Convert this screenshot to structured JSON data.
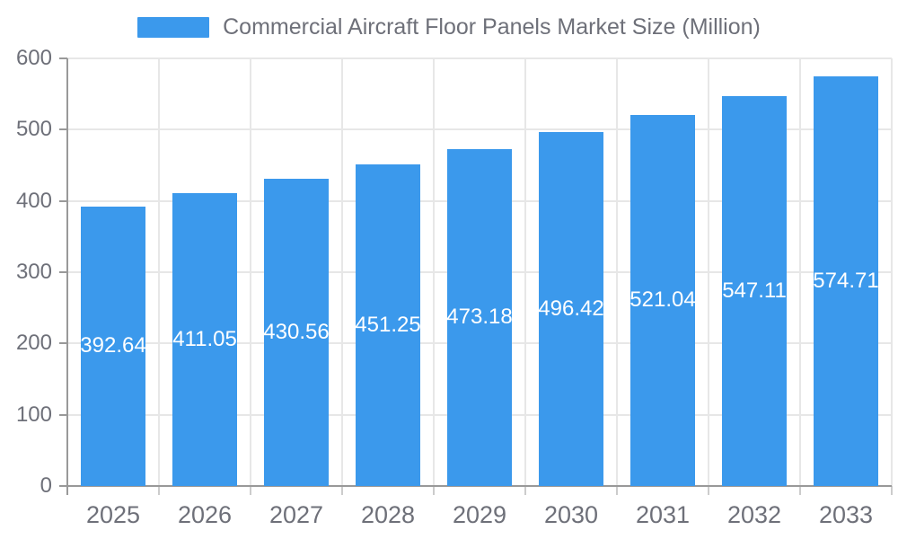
{
  "legend": {
    "label": "Commercial Aircraft Floor Panels Market Size (Million)",
    "swatch_color": "#3B99EC"
  },
  "chart_data": {
    "type": "bar",
    "title": "Commercial Aircraft Floor Panels Market Size (Million)",
    "categories": [
      "2025",
      "2026",
      "2027",
      "2028",
      "2029",
      "2030",
      "2031",
      "2032",
      "2033"
    ],
    "values": [
      392.64,
      411.05,
      430.56,
      451.25,
      473.18,
      496.42,
      521.04,
      547.11,
      574.71
    ],
    "value_labels": [
      "392.64",
      "411.05",
      "430.56",
      "451.25",
      "473.18",
      "496.42",
      "521.04",
      "547.11",
      "574.71"
    ],
    "xlabel": "",
    "ylabel": "",
    "ylim": [
      0,
      600
    ],
    "yticks": [
      0,
      100,
      200,
      300,
      400,
      500,
      600
    ],
    "grid": true,
    "legend_position": "top",
    "bar_color": "#3B99EC",
    "value_label_color": "#ffffff",
    "axis_label_color": "#6E7079",
    "grid_color": "#E7E7E7",
    "axis_line_color": "#999999",
    "category_tick_color": "#CCCCCC"
  }
}
